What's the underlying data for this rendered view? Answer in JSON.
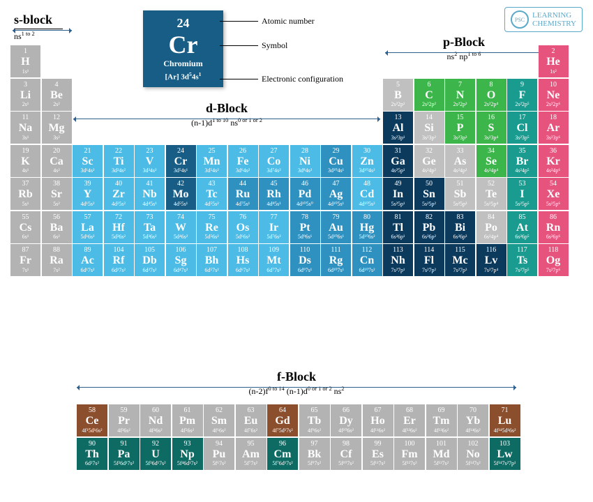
{
  "logo": {
    "brand": "PSC",
    "text1": "LEARNING",
    "text2": "CHEMISTRY"
  },
  "legend": {
    "number": "24",
    "symbol": "Cr",
    "name": "Chromium",
    "config_prefix": "[Ar] 3d",
    "config_d": "5",
    "config_s_prefix": "4s",
    "config_s": "1",
    "labels": {
      "atomic": "Atomic number",
      "symbol": "Symbol",
      "config": "Electronic configuration"
    }
  },
  "blocks": {
    "s": {
      "title": "s-block",
      "sub_prefix": "ns",
      "sub_sup": "1 to 2"
    },
    "p": {
      "title": "p-Block",
      "sub": "ns<sup>2</sup> np<sup>1 to 6</sup>"
    },
    "d": {
      "title": "d-Block",
      "sub": "(n-1)d<sup>1 to 10</sup> ns<sup>0 or 1 or 2</sup>"
    },
    "f": {
      "title": "f-Block",
      "sub": "(n-2)f<sup>0 to 14</sup> (n-1)d<sup>0 or 1 or 2</sup> ns<sup>2</sup>"
    }
  },
  "colors": {
    "gray": "#b3b3b3",
    "lightblue": "#4cbce6",
    "midblue": "#2f91c0",
    "darkblue": "#175d86",
    "navy": "#0b3a5d",
    "green": "#3cb64a",
    "teal": "#1a9b8f",
    "darkteal": "#0d6b64",
    "brown": "#8b4f2e",
    "pink": "#e6547e",
    "lightgray": "#c0c0c0"
  },
  "elements": [
    {
      "n": "1",
      "s": "H",
      "c": "1s¹",
      "col": 1,
      "row": 1,
      "color": "gray"
    },
    {
      "n": "2",
      "s": "He",
      "c": "1s²",
      "col": 18,
      "row": 1,
      "color": "pink"
    },
    {
      "n": "3",
      "s": "Li",
      "c": "2s¹",
      "col": 1,
      "row": 2,
      "color": "gray"
    },
    {
      "n": "4",
      "s": "Be",
      "c": "2s²",
      "col": 2,
      "row": 2,
      "color": "gray"
    },
    {
      "n": "5",
      "s": "B",
      "c": "2s²2p¹",
      "col": 13,
      "row": 2,
      "color": "lightgray"
    },
    {
      "n": "6",
      "s": "C",
      "c": "2s²2p²",
      "col": 14,
      "row": 2,
      "color": "green"
    },
    {
      "n": "7",
      "s": "N",
      "c": "2s²2p³",
      "col": 15,
      "row": 2,
      "color": "green"
    },
    {
      "n": "8",
      "s": "O",
      "c": "2s²2p⁴",
      "col": 16,
      "row": 2,
      "color": "green"
    },
    {
      "n": "9",
      "s": "F",
      "c": "2s²2p⁵",
      "col": 17,
      "row": 2,
      "color": "teal"
    },
    {
      "n": "10",
      "s": "Ne",
      "c": "2s²2p⁶",
      "col": 18,
      "row": 2,
      "color": "pink"
    },
    {
      "n": "11",
      "s": "Na",
      "c": "3s¹",
      "col": 1,
      "row": 3,
      "color": "gray"
    },
    {
      "n": "12",
      "s": "Mg",
      "c": "3s²",
      "col": 2,
      "row": 3,
      "color": "gray"
    },
    {
      "n": "13",
      "s": "Al",
      "c": "3s²3p¹",
      "col": 13,
      "row": 3,
      "color": "navy"
    },
    {
      "n": "14",
      "s": "Si",
      "c": "3s²3p²",
      "col": 14,
      "row": 3,
      "color": "lightgray"
    },
    {
      "n": "15",
      "s": "P",
      "c": "3s²3p³",
      "col": 15,
      "row": 3,
      "color": "green"
    },
    {
      "n": "16",
      "s": "S",
      "c": "3s²3p⁴",
      "col": 16,
      "row": 3,
      "color": "green"
    },
    {
      "n": "17",
      "s": "Cl",
      "c": "3s²3p⁵",
      "col": 17,
      "row": 3,
      "color": "teal"
    },
    {
      "n": "18",
      "s": "Ar",
      "c": "3s²3p⁶",
      "col": 18,
      "row": 3,
      "color": "pink"
    },
    {
      "n": "19",
      "s": "K",
      "c": "4s¹",
      "col": 1,
      "row": 4,
      "color": "gray"
    },
    {
      "n": "20",
      "s": "Ca",
      "c": "4s²",
      "col": 2,
      "row": 4,
      "color": "gray"
    },
    {
      "n": "21",
      "s": "Sc",
      "c": "3d¹4s²",
      "col": 3,
      "row": 4,
      "color": "lightblue"
    },
    {
      "n": "22",
      "s": "Ti",
      "c": "3d²4s²",
      "col": 4,
      "row": 4,
      "color": "lightblue"
    },
    {
      "n": "23",
      "s": "V",
      "c": "3d³4s²",
      "col": 5,
      "row": 4,
      "color": "lightblue"
    },
    {
      "n": "24",
      "s": "Cr",
      "c": "3d⁵4s¹",
      "col": 6,
      "row": 4,
      "color": "darkblue"
    },
    {
      "n": "25",
      "s": "Mn",
      "c": "3d⁵4s²",
      "col": 7,
      "row": 4,
      "color": "lightblue"
    },
    {
      "n": "26",
      "s": "Fe",
      "c": "3d⁶4s²",
      "col": 8,
      "row": 4,
      "color": "lightblue"
    },
    {
      "n": "27",
      "s": "Co",
      "c": "3d⁷4s²",
      "col": 9,
      "row": 4,
      "color": "lightblue"
    },
    {
      "n": "28",
      "s": "Ni",
      "c": "3d⁸4s²",
      "col": 10,
      "row": 4,
      "color": "lightblue"
    },
    {
      "n": "29",
      "s": "Cu",
      "c": "3d¹⁰4s¹",
      "col": 11,
      "row": 4,
      "color": "midblue"
    },
    {
      "n": "30",
      "s": "Zn",
      "c": "3d¹⁰4s²",
      "col": 12,
      "row": 4,
      "color": "lightblue"
    },
    {
      "n": "31",
      "s": "Ga",
      "c": "4s²5p¹",
      "col": 13,
      "row": 4,
      "color": "navy"
    },
    {
      "n": "32",
      "s": "Ge",
      "c": "4s²4p²",
      "col": 14,
      "row": 4,
      "color": "lightgray"
    },
    {
      "n": "33",
      "s": "As",
      "c": "4s²4p³",
      "col": 15,
      "row": 4,
      "color": "lightgray"
    },
    {
      "n": "34",
      "s": "Se",
      "c": "4s²4p⁴",
      "col": 16,
      "row": 4,
      "color": "green"
    },
    {
      "n": "35",
      "s": "Br",
      "c": "4s²4p⁵",
      "col": 17,
      "row": 4,
      "color": "teal"
    },
    {
      "n": "36",
      "s": "Kr",
      "c": "4s²4p⁶",
      "col": 18,
      "row": 4,
      "color": "pink"
    },
    {
      "n": "37",
      "s": "Rb",
      "c": "5s¹",
      "col": 1,
      "row": 5,
      "color": "gray"
    },
    {
      "n": "38",
      "s": "Sr",
      "c": "5s²",
      "col": 2,
      "row": 5,
      "color": "gray"
    },
    {
      "n": "39",
      "s": "Y",
      "c": "4d¹5s²",
      "col": 3,
      "row": 5,
      "color": "lightblue"
    },
    {
      "n": "40",
      "s": "Zr",
      "c": "4d²5s²",
      "col": 4,
      "row": 5,
      "color": "lightblue"
    },
    {
      "n": "41",
      "s": "Nb",
      "c": "4d⁴5s¹",
      "col": 5,
      "row": 5,
      "color": "lightblue"
    },
    {
      "n": "42",
      "s": "Mo",
      "c": "4d⁵5s¹",
      "col": 6,
      "row": 5,
      "color": "darkblue"
    },
    {
      "n": "43",
      "s": "Tc",
      "c": "4d⁵5s²",
      "col": 7,
      "row": 5,
      "color": "lightblue"
    },
    {
      "n": "44",
      "s": "Ru",
      "c": "4d⁷5s¹",
      "col": 8,
      "row": 5,
      "color": "midblue"
    },
    {
      "n": "45",
      "s": "Rh",
      "c": "4d⁸5s¹",
      "col": 9,
      "row": 5,
      "color": "midblue"
    },
    {
      "n": "46",
      "s": "Pd",
      "c": "4d¹⁰5s⁰",
      "col": 10,
      "row": 5,
      "color": "midblue"
    },
    {
      "n": "47",
      "s": "Ag",
      "c": "4d¹⁰5s¹",
      "col": 11,
      "row": 5,
      "color": "midblue"
    },
    {
      "n": "48",
      "s": "Cd",
      "c": "4d¹⁰5s²",
      "col": 12,
      "row": 5,
      "color": "lightblue"
    },
    {
      "n": "49",
      "s": "In",
      "c": "5s²5p¹",
      "col": 13,
      "row": 5,
      "color": "navy"
    },
    {
      "n": "50",
      "s": "Sn",
      "c": "5s²5p²",
      "col": 14,
      "row": 5,
      "color": "navy"
    },
    {
      "n": "51",
      "s": "Sb",
      "c": "5s²5p³",
      "col": 15,
      "row": 5,
      "color": "lightgray"
    },
    {
      "n": "52",
      "s": "Te",
      "c": "5s²5p⁴",
      "col": 16,
      "row": 5,
      "color": "lightgray"
    },
    {
      "n": "53",
      "s": "I",
      "c": "5s²5p⁵",
      "col": 17,
      "row": 5,
      "color": "teal"
    },
    {
      "n": "54",
      "s": "Xe",
      "c": "5s²5p⁶",
      "col": 18,
      "row": 5,
      "color": "pink"
    },
    {
      "n": "55",
      "s": "Cs",
      "c": "6s¹",
      "col": 1,
      "row": 6,
      "color": "gray"
    },
    {
      "n": "56",
      "s": "Ba",
      "c": "6s²",
      "col": 2,
      "row": 6,
      "color": "gray"
    },
    {
      "n": "57",
      "s": "La",
      "c": "5d¹6s²",
      "col": 3,
      "row": 6,
      "color": "lightblue"
    },
    {
      "n": "72",
      "s": "Hf",
      "c": "5d²6s²",
      "col": 4,
      "row": 6,
      "color": "lightblue"
    },
    {
      "n": "73",
      "s": "Ta",
      "c": "5d³6s²",
      "col": 5,
      "row": 6,
      "color": "lightblue"
    },
    {
      "n": "74",
      "s": "W",
      "c": "5d⁴6s²",
      "col": 6,
      "row": 6,
      "color": "lightblue"
    },
    {
      "n": "75",
      "s": "Re",
      "c": "5d⁵6s²",
      "col": 7,
      "row": 6,
      "color": "lightblue"
    },
    {
      "n": "76",
      "s": "Os",
      "c": "5d⁶6s²",
      "col": 8,
      "row": 6,
      "color": "lightblue"
    },
    {
      "n": "77",
      "s": "Ir",
      "c": "5d⁷6s²",
      "col": 9,
      "row": 6,
      "color": "lightblue"
    },
    {
      "n": "78",
      "s": "Pt",
      "c": "5d⁹6s¹",
      "col": 10,
      "row": 6,
      "color": "midblue"
    },
    {
      "n": "79",
      "s": "Au",
      "c": "5d¹⁰6s¹",
      "col": 11,
      "row": 6,
      "color": "midblue"
    },
    {
      "n": "80",
      "s": "Hg",
      "c": "5d¹⁰6s²",
      "col": 12,
      "row": 6,
      "color": "midblue"
    },
    {
      "n": "81",
      "s": "Tl",
      "c": "6s²6p¹",
      "col": 13,
      "row": 6,
      "color": "navy"
    },
    {
      "n": "82",
      "s": "Pb",
      "c": "6s²6p²",
      "col": 14,
      "row": 6,
      "color": "navy"
    },
    {
      "n": "83",
      "s": "Bi",
      "c": "6s²6p³",
      "col": 15,
      "row": 6,
      "color": "navy"
    },
    {
      "n": "84",
      "s": "Po",
      "c": "6s²4p⁴",
      "col": 16,
      "row": 6,
      "color": "lightgray"
    },
    {
      "n": "85",
      "s": "At",
      "c": "6s²6p⁵",
      "col": 17,
      "row": 6,
      "color": "teal"
    },
    {
      "n": "86",
      "s": "Rn",
      "c": "6s²6p⁶",
      "col": 18,
      "row": 6,
      "color": "pink"
    },
    {
      "n": "87",
      "s": "Fr",
      "c": "7s¹",
      "col": 1,
      "row": 7,
      "color": "gray"
    },
    {
      "n": "88",
      "s": "Ra",
      "c": "7s²",
      "col": 2,
      "row": 7,
      "color": "gray"
    },
    {
      "n": "89",
      "s": "Ac",
      "c": "6d¹7s²",
      "col": 3,
      "row": 7,
      "color": "lightblue"
    },
    {
      "n": "104",
      "s": "Rf",
      "c": "6d²7s²",
      "col": 4,
      "row": 7,
      "color": "lightblue"
    },
    {
      "n": "105",
      "s": "Db",
      "c": "6d³7s²",
      "col": 5,
      "row": 7,
      "color": "lightblue"
    },
    {
      "n": "106",
      "s": "Sg",
      "c": "6d⁴7s²",
      "col": 6,
      "row": 7,
      "color": "lightblue"
    },
    {
      "n": "107",
      "s": "Bh",
      "c": "6d⁵7s²",
      "col": 7,
      "row": 7,
      "color": "lightblue"
    },
    {
      "n": "108",
      "s": "Hs",
      "c": "6d⁶7s²",
      "col": 8,
      "row": 7,
      "color": "lightblue"
    },
    {
      "n": "109",
      "s": "Mt",
      "c": "6d⁷7s²",
      "col": 9,
      "row": 7,
      "color": "lightblue"
    },
    {
      "n": "110",
      "s": "Ds",
      "c": "6d⁹7s¹",
      "col": 10,
      "row": 7,
      "color": "midblue"
    },
    {
      "n": "111",
      "s": "Rg",
      "c": "6d¹⁰7s¹",
      "col": 11,
      "row": 7,
      "color": "midblue"
    },
    {
      "n": "112",
      "s": "Cn",
      "c": "6d¹⁰7s²",
      "col": 12,
      "row": 7,
      "color": "midblue"
    },
    {
      "n": "113",
      "s": "Nh",
      "c": "7s²7p¹",
      "col": 13,
      "row": 7,
      "color": "navy"
    },
    {
      "n": "114",
      "s": "Fl",
      "c": "7s²7p²",
      "col": 14,
      "row": 7,
      "color": "navy"
    },
    {
      "n": "115",
      "s": "Mc",
      "c": "7s²7p³",
      "col": 15,
      "row": 7,
      "color": "navy"
    },
    {
      "n": "116",
      "s": "Lv",
      "c": "7s²7p⁴",
      "col": 16,
      "row": 7,
      "color": "navy"
    },
    {
      "n": "117",
      "s": "Ts",
      "c": "7s²7p⁵",
      "col": 17,
      "row": 7,
      "color": "teal"
    },
    {
      "n": "118",
      "s": "Og",
      "c": "7s²7p⁶",
      "col": 18,
      "row": 7,
      "color": "pink"
    }
  ],
  "f_elements": [
    {
      "n": "58",
      "s": "Ce",
      "c": "4f¹5d¹6s²",
      "col": 1,
      "row": 1,
      "color": "brown"
    },
    {
      "n": "59",
      "s": "Pr",
      "c": "4f³6s²",
      "col": 2,
      "row": 1,
      "color": "gray"
    },
    {
      "n": "60",
      "s": "Nd",
      "c": "4f⁴6s²",
      "col": 3,
      "row": 1,
      "color": "gray"
    },
    {
      "n": "61",
      "s": "Pm",
      "c": "4f⁵6s²",
      "col": 4,
      "row": 1,
      "color": "gray"
    },
    {
      "n": "62",
      "s": "Sm",
      "c": "4f⁶6s²",
      "col": 5,
      "row": 1,
      "color": "gray"
    },
    {
      "n": "63",
      "s": "Eu",
      "c": "4f⁷6s²",
      "col": 6,
      "row": 1,
      "color": "gray"
    },
    {
      "n": "64",
      "s": "Gd",
      "c": "4f⁷5d¹7s²",
      "col": 7,
      "row": 1,
      "color": "brown"
    },
    {
      "n": "65",
      "s": "Tb",
      "c": "4f⁹6s²",
      "col": 8,
      "row": 1,
      "color": "gray"
    },
    {
      "n": "66",
      "s": "Dy",
      "c": "4f¹⁰6s²",
      "col": 9,
      "row": 1,
      "color": "gray"
    },
    {
      "n": "67",
      "s": "Ho",
      "c": "4f¹¹6s²",
      "col": 10,
      "row": 1,
      "color": "gray"
    },
    {
      "n": "68",
      "s": "Er",
      "c": "4f¹²6s²",
      "col": 11,
      "row": 1,
      "color": "gray"
    },
    {
      "n": "69",
      "s": "Tm",
      "c": "4f¹³6s²",
      "col": 12,
      "row": 1,
      "color": "gray"
    },
    {
      "n": "70",
      "s": "Yb",
      "c": "4f¹⁴6s²",
      "col": 13,
      "row": 1,
      "color": "gray"
    },
    {
      "n": "71",
      "s": "Lu",
      "c": "4f¹⁴5d¹6s²",
      "col": 14,
      "row": 1,
      "color": "brown"
    },
    {
      "n": "90",
      "s": "Th",
      "c": "6d²7s²",
      "col": 1,
      "row": 2,
      "color": "darkteal"
    },
    {
      "n": "91",
      "s": "Pa",
      "c": "5f²6d¹7s²",
      "col": 2,
      "row": 2,
      "color": "darkteal"
    },
    {
      "n": "92",
      "s": "U",
      "c": "5f³6d¹7s²",
      "col": 3,
      "row": 2,
      "color": "darkteal"
    },
    {
      "n": "93",
      "s": "Np",
      "c": "5f⁴6d¹7s²",
      "col": 4,
      "row": 2,
      "color": "darkteal"
    },
    {
      "n": "94",
      "s": "Pu",
      "c": "5f⁶7s²",
      "col": 5,
      "row": 2,
      "color": "gray"
    },
    {
      "n": "95",
      "s": "Am",
      "c": "5f⁷7s²",
      "col": 6,
      "row": 2,
      "color": "gray"
    },
    {
      "n": "96",
      "s": "Cm",
      "c": "5f⁷6d¹7s²",
      "col": 7,
      "row": 2,
      "color": "darkteal"
    },
    {
      "n": "97",
      "s": "Bk",
      "c": "5f⁹7s²",
      "col": 8,
      "row": 2,
      "color": "gray"
    },
    {
      "n": "98",
      "s": "Cf",
      "c": "5f¹⁰7s²",
      "col": 9,
      "row": 2,
      "color": "gray"
    },
    {
      "n": "99",
      "s": "Es",
      "c": "5f¹¹7s²",
      "col": 10,
      "row": 2,
      "color": "gray"
    },
    {
      "n": "100",
      "s": "Fm",
      "c": "5f¹²7s²",
      "col": 11,
      "row": 2,
      "color": "gray"
    },
    {
      "n": "101",
      "s": "Md",
      "c": "5f¹³7s²",
      "col": 12,
      "row": 2,
      "color": "gray"
    },
    {
      "n": "102",
      "s": "No",
      "c": "5f¹⁴7s²",
      "col": 13,
      "row": 2,
      "color": "gray"
    },
    {
      "n": "103",
      "s": "Lw",
      "c": "5f¹⁴7s²7p¹",
      "col": 14,
      "row": 2,
      "color": "darkteal"
    }
  ]
}
